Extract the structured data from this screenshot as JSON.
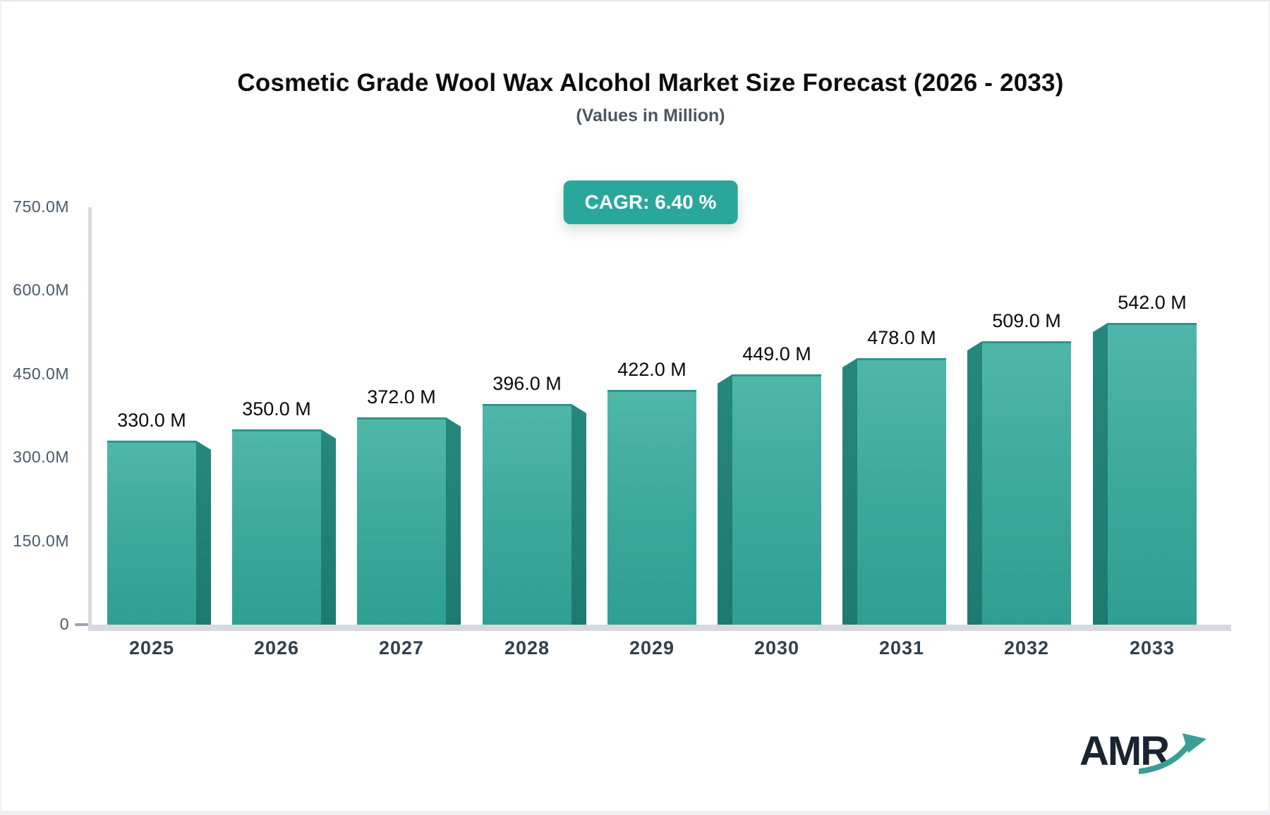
{
  "page": {
    "title": "Cosmetic Grade Wool Wax Alcohol Market Size Forecast (2026 - 2033)",
    "subtitle": "(Values in Million)",
    "cagr_badge": "CAGR: 6.40 %"
  },
  "branding": {
    "logo_text": "AMR",
    "logo_arrow_icon": "trend-up-arrow"
  },
  "colors": {
    "accent_teal": "#2aa79b",
    "bar_face_top": "#50b6aa",
    "bar_face_bottom": "#2f9f93",
    "bar_top_edge": "#2d968b",
    "bar_side_top": "#26877d",
    "bar_side_bottom": "#1d7a71",
    "axis_gray": "#d6d9de",
    "tick_dash_gray": "#9ba3af",
    "y_label_color": "#4a5968",
    "x_label_color": "#323f4d",
    "value_label_color": "#0a0a0a",
    "badge_text": "#ffffff",
    "logo_navy": "#1a2330",
    "logo_arrow_teal": "#3a9e95"
  },
  "chart_data": {
    "type": "bar",
    "title": "Cosmetic Grade Wool Wax Alcohol Market Size Forecast (2026 - 2033)",
    "subtitle": "(Values in Million)",
    "cagr": "6.40 %",
    "categories": [
      "2025",
      "2026",
      "2027",
      "2028",
      "2029",
      "2030",
      "2031",
      "2032",
      "2033"
    ],
    "values": [
      330,
      350,
      372,
      396,
      422,
      449,
      478,
      509,
      542
    ],
    "value_labels": [
      "330.0 M",
      "350.0 M",
      "372.0 M",
      "396.0 M",
      "422.0 M",
      "449.0 M",
      "478.0 M",
      "509.0 M",
      "542.0 M"
    ],
    "xlabel": "",
    "ylabel": "",
    "ylim": [
      0,
      750
    ],
    "yticks": [
      {
        "label": "750.0M",
        "value": 750
      },
      {
        "label": "600.0M",
        "value": 600
      },
      {
        "label": "450.0M",
        "value": 450
      },
      {
        "label": "300.0M",
        "value": 300
      },
      {
        "label": "150.0M",
        "value": 150
      },
      {
        "label": "0",
        "value": 0
      }
    ],
    "grid": false,
    "legend": false,
    "bar_style": "3d-perspective-center-vanishing"
  }
}
